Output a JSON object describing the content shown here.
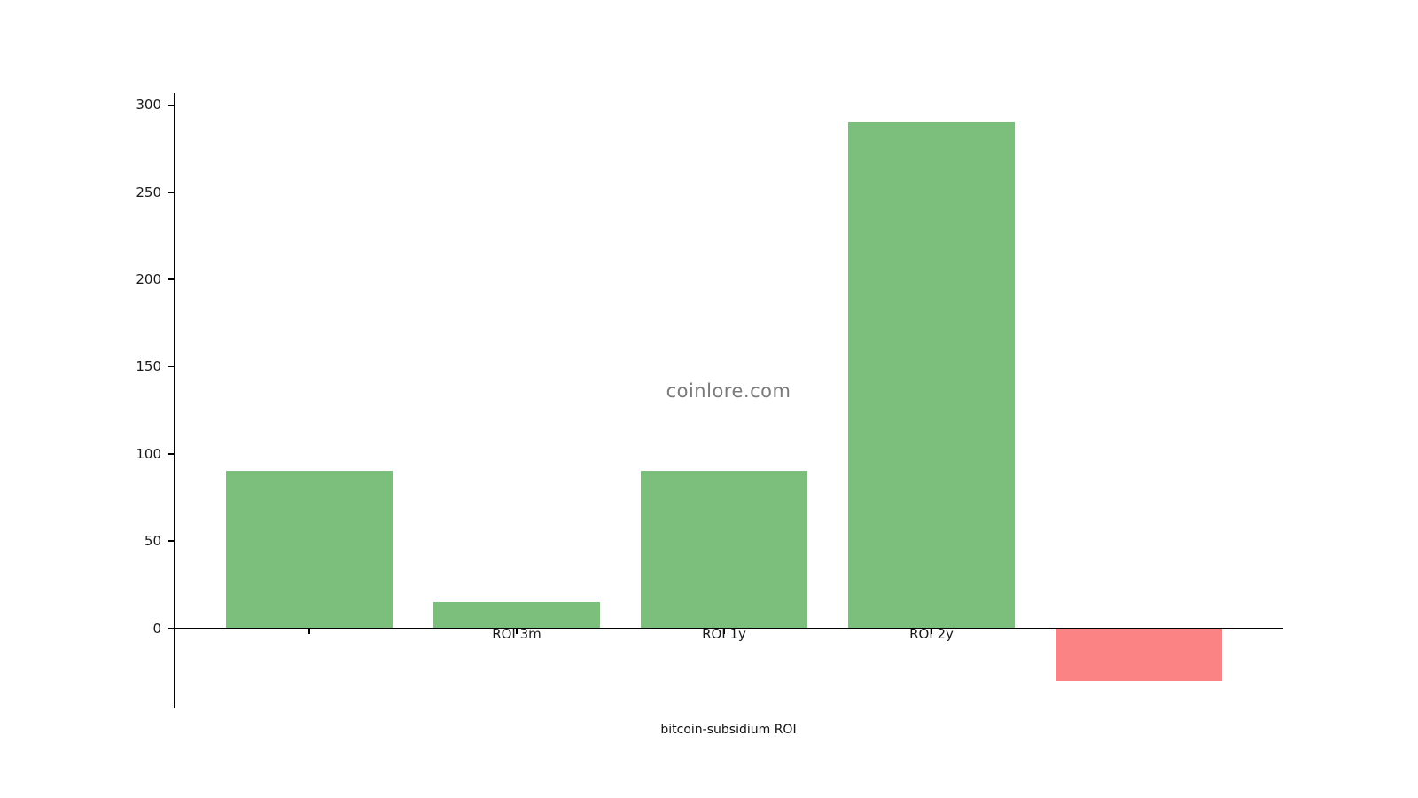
{
  "chart_data": {
    "type": "bar",
    "categories": [
      "",
      "ROI 3m",
      "ROI 1y",
      "ROI 2y",
      ""
    ],
    "values": [
      90,
      15,
      90,
      290,
      -30
    ],
    "bar_colors": [
      "#7CBE7C",
      "#7CBE7C",
      "#7CBE7C",
      "#7CBE7C",
      "#FC8383"
    ],
    "positive_color": "#7CBE7C",
    "negative_color": "#FC8383",
    "x_tick_marks": [
      true,
      true,
      true,
      true,
      false
    ],
    "y_ticks": [
      0,
      50,
      100,
      150,
      200,
      250,
      300
    ],
    "ylim": [
      -45,
      307
    ],
    "grid": false,
    "legend_position": "none",
    "title": "",
    "xlabel": "bitcoin-subsidium ROI",
    "ylabel": "",
    "watermark": "coinlore.com",
    "axis_color": "#000000",
    "tick_text_color": "#1a1a1a",
    "watermark_color": "#7a7a7a",
    "background_color": "#ffffff"
  }
}
